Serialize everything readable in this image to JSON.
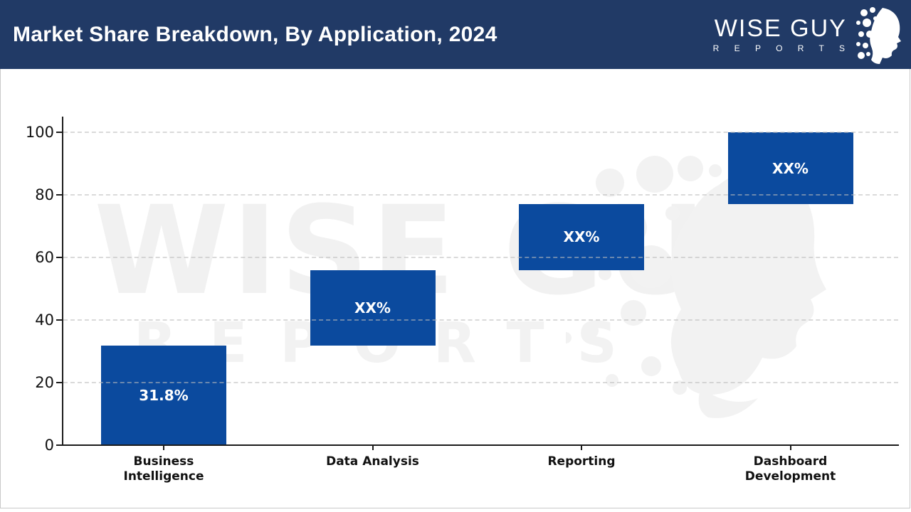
{
  "header": {
    "title": "Market Share Breakdown, By Application, 2024",
    "bg_color": "#213a66",
    "logo": {
      "line1": "WISE GUY",
      "line2": "R E P O R T S"
    }
  },
  "watermark": {
    "line1": "WISE GUY",
    "line2": "REPORTS"
  },
  "chart_data": {
    "type": "bar",
    "subtype": "waterfall",
    "title": "Market Share Breakdown, By Application, 2024",
    "categories": [
      "Business\nIntelligence",
      "Data Analysis",
      "Reporting",
      "Dashboard\nDevelopment"
    ],
    "segments": [
      {
        "category": "Business Intelligence",
        "start": 0,
        "end": 31.8,
        "label": "31.8%"
      },
      {
        "category": "Data Analysis",
        "start": 31.8,
        "end": 56,
        "label": "XX%"
      },
      {
        "category": "Reporting",
        "start": 56,
        "end": 77,
        "label": "XX%"
      },
      {
        "category": "Dashboard Development",
        "start": 77,
        "end": 100,
        "label": "XX%"
      }
    ],
    "y_ticks": [
      0,
      20,
      40,
      60,
      80,
      100
    ],
    "ylim": [
      0,
      100
    ],
    "xlabel": "",
    "ylabel": "",
    "grid": "dashed horizontal",
    "legend": "none",
    "bar_color": "#0b4a9e",
    "bar_label_color": "#ffffff",
    "axis_color": "#1c1c1c"
  }
}
